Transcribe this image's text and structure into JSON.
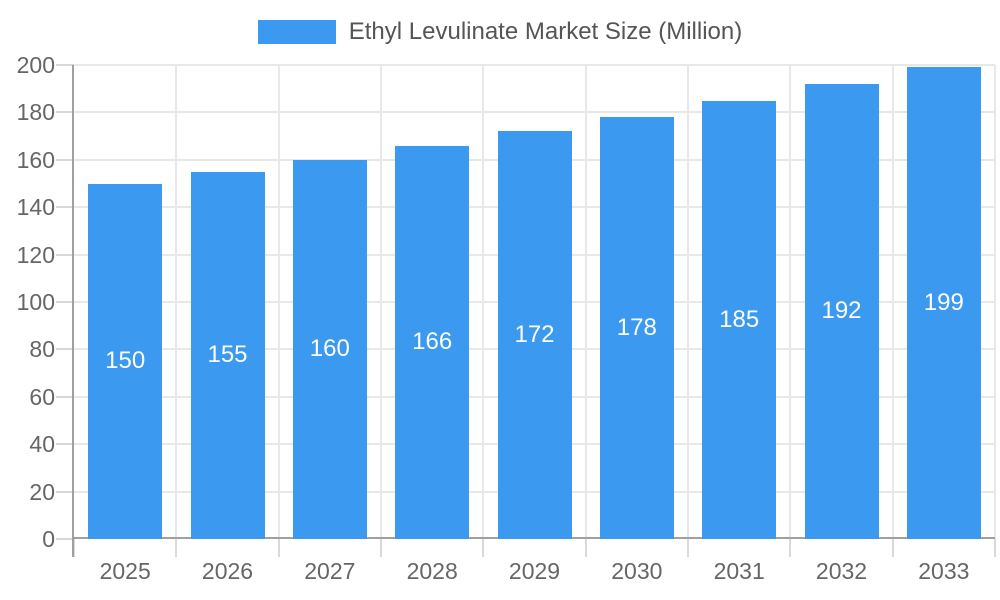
{
  "legend": {
    "label": "Ethyl Levulinate Market Size (Million)"
  },
  "chart_data": {
    "type": "bar",
    "title": "Ethyl Levulinate Market Size (Million)",
    "series_name": "Ethyl Levulinate Market Size (Million)",
    "categories": [
      "2025",
      "2026",
      "2027",
      "2028",
      "2029",
      "2030",
      "2031",
      "2032",
      "2033"
    ],
    "values": [
      150,
      155,
      160,
      166,
      172,
      178,
      185,
      192,
      199
    ],
    "xlabel": "",
    "ylabel": "",
    "ylim": [
      0,
      200
    ],
    "ytick_step": 20,
    "grid": true,
    "legend_position": "top-center",
    "bar_color": "#3b99ef",
    "bar_label_color": "#ffffff",
    "axis_label_color": "#666666",
    "legend_text_color": "#555555",
    "background_color": "#ffffff"
  }
}
